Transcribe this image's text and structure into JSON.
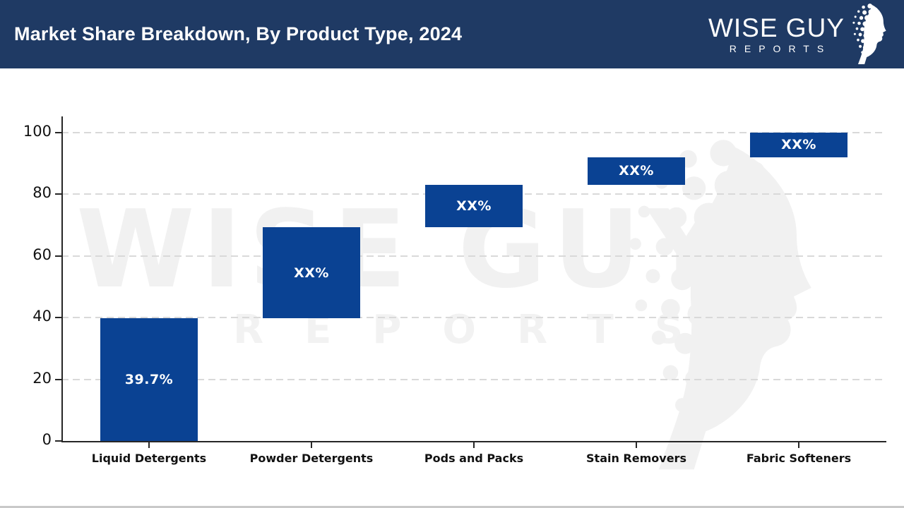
{
  "header": {
    "title": "Market Share Breakdown, By Product Type, 2024",
    "background": "#1f3a64",
    "logo": {
      "line1": "WISE GUY",
      "line2": "REPORTS"
    }
  },
  "watermark": {
    "line1": "WISE GUY",
    "line2": "REPORTS"
  },
  "chart_data": {
    "type": "bar",
    "subtype": "waterfall",
    "title": "Market Share Breakdown, By Product Type, 2024",
    "xlabel": "",
    "ylabel": "",
    "categories": [
      "Liquid Detergents",
      "Powder Detergents",
      "Pods and Packs",
      "Stain Removers",
      "Fabric Softeners"
    ],
    "segments": [
      {
        "category": "Liquid Detergents",
        "start": 0,
        "end": 39.7,
        "label": "39.7%"
      },
      {
        "category": "Powder Detergents",
        "start": 39.7,
        "end": 69.3,
        "label": "XX%"
      },
      {
        "category": "Pods and Packs",
        "start": 69.3,
        "end": 83.0,
        "label": "XX%"
      },
      {
        "category": "Stain Removers",
        "start": 83.0,
        "end": 92.0,
        "label": "XX%"
      },
      {
        "category": "Fabric Softeners",
        "start": 92.0,
        "end": 100.0,
        "label": "XX%"
      }
    ],
    "yticks": [
      0,
      20,
      40,
      60,
      80,
      100
    ],
    "ylim": [
      0,
      105
    ],
    "grid": "horizontal dashed",
    "legend": "none",
    "bar_color": "#0a4293",
    "grid_color": "#d9d9d9",
    "axis_color": "#262626",
    "value_label_color": "#ffffff"
  }
}
